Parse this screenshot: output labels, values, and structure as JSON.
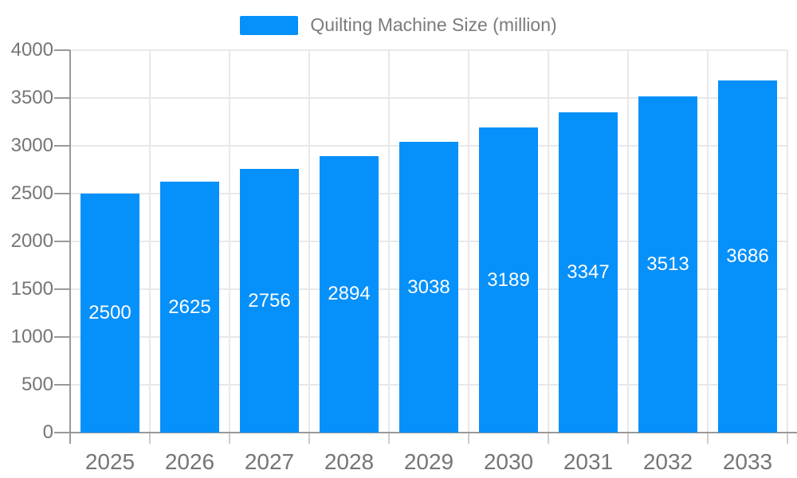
{
  "chart_data": {
    "type": "bar",
    "title": "Quilting Machine Size (million)",
    "series_name": "Quilting Machine Size (million)",
    "categories": [
      "2025",
      "2026",
      "2027",
      "2028",
      "2029",
      "2030",
      "2031",
      "2032",
      "2033"
    ],
    "values": [
      2500,
      2625,
      2756,
      2894,
      3038,
      3189,
      3347,
      3513,
      3686
    ],
    "xlabel": "",
    "ylabel": "",
    "ylim": [
      0,
      4000
    ],
    "yticks": [
      0,
      500,
      1000,
      1500,
      2000,
      2500,
      3000,
      3500,
      4000
    ],
    "grid": true,
    "legend_position": "top-center",
    "value_labels": "inside-center"
  },
  "colors": {
    "bar": "#0690fa",
    "grid": "#e8e8e8",
    "axis": "#999999",
    "tick_light": "#cccccc",
    "axis_text": "#757575",
    "legend_text": "#7b7b7b",
    "bar_label": "#ffffff",
    "background": "#ffffff"
  }
}
